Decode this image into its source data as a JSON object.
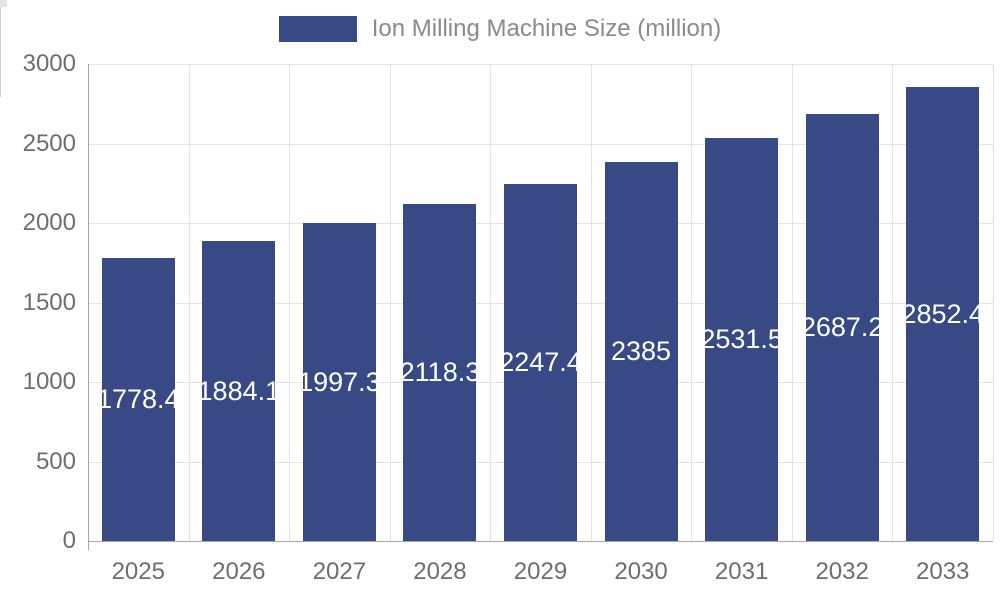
{
  "legend": {
    "label": "Ion Milling Machine Size (million)"
  },
  "colors": {
    "bar": "#374a86",
    "bar_label": "#ffffff",
    "grid": "#e3e3e3",
    "axis_line": "#a6a6a6",
    "axis_label": "#6e6e6e",
    "legend_label": "#8a8a8a",
    "background": "#ffffff"
  },
  "chart_data": {
    "type": "bar",
    "title": "Ion Milling Machine Size (million)",
    "series_name": "Ion Milling Machine Size (million)",
    "categories": [
      "2025",
      "2026",
      "2027",
      "2028",
      "2029",
      "2030",
      "2031",
      "2032",
      "2033"
    ],
    "values": [
      1778.4,
      1884.1,
      1997.3,
      2118.3,
      2247.4,
      2385,
      2531.5,
      2687.2,
      2852.4
    ],
    "xlabel": "",
    "ylabel": "",
    "ylim": [
      0,
      3000
    ],
    "yticks": [
      0,
      500,
      1000,
      1500,
      2000,
      2500,
      3000
    ],
    "grid": true,
    "legend_position": "top",
    "bar_labels": "inside-center"
  }
}
